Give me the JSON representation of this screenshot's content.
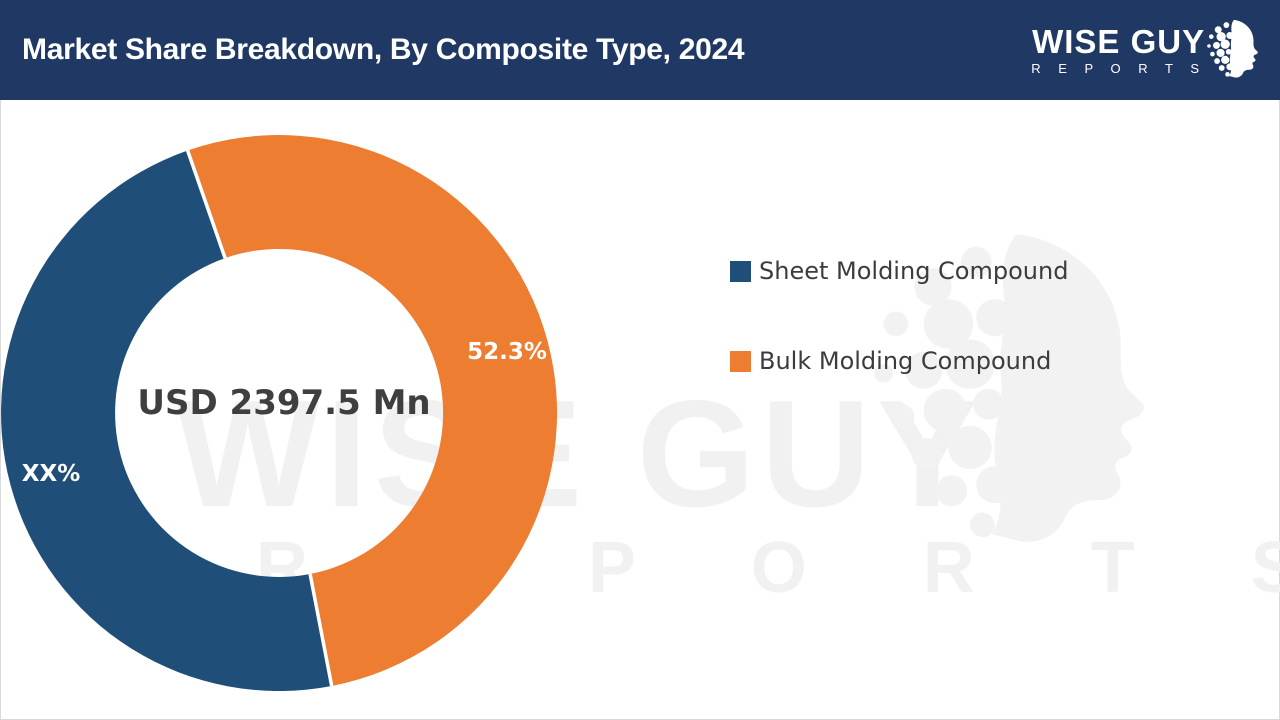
{
  "header": {
    "title": "Market Share Breakdown, By Composite Type, 2024",
    "logo": {
      "name": "WISE GUY",
      "sub": "R E P O R T S"
    }
  },
  "watermark": {
    "line1": "WISE GUY",
    "line2": "R E P O R T S"
  },
  "chart_data": {
    "type": "pie",
    "subtype": "donut",
    "title": "Market Share Breakdown, By Composite Type, 2024",
    "center_label": "USD 2397.5 Mn",
    "start_angle_deg": -19.2,
    "inner_radius_ratio": 0.59,
    "legend_position": "right",
    "segments": [
      {
        "label": "Bulk Molding Compound",
        "display_value": "52.3%",
        "value": 52.3,
        "color": "#ED7D31"
      },
      {
        "label": "Sheet Molding Compound",
        "display_value": "XX%",
        "value": 47.7,
        "color": "#1F4E79"
      }
    ]
  },
  "legend": {
    "items": [
      {
        "label": "Sheet Molding Compound",
        "color": "#1F4E79"
      },
      {
        "label": "Bulk Molding Compound",
        "color": "#ED7D31"
      }
    ]
  },
  "colors": {
    "header_bg": "#1F3864",
    "body_bg": "#FFFFFF",
    "border": "#D9D9D9",
    "text_dark": "#3F3F3F",
    "watermark": "#F1F1F1",
    "slice_separator": "#FFFFFF"
  }
}
